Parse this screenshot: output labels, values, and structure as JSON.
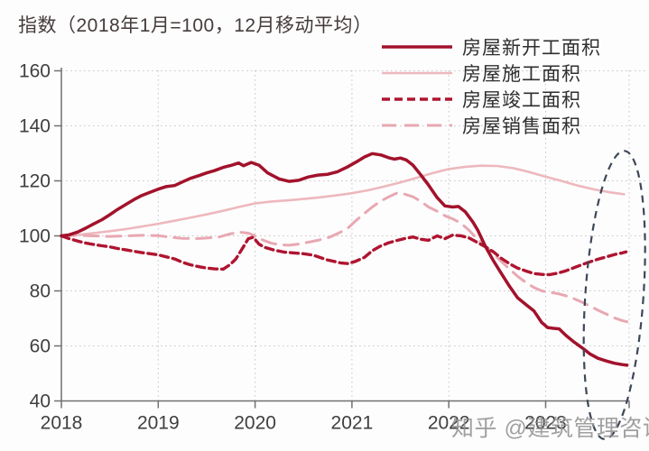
{
  "title": "指数（2018年1月=100，12月移动平均）",
  "watermark": {
    "text": "知乎 @建筑管理咨询"
  },
  "colors": {
    "new_starts": "#A2122B",
    "construction": "#EDB8BD",
    "completed": "#AF1430",
    "sales": "#E8A8B2",
    "axis": "#707070",
    "grid": "#c8c8c8",
    "tick_label": "#3f3f3f",
    "annotation": "#3d4757"
  },
  "chart_data": {
    "type": "line",
    "title": "指数（2018年1月=100，12月移动平均）",
    "xlabel": "",
    "ylabel": "",
    "x_range": [
      2018,
      2023.87
    ],
    "ylim": [
      40,
      160
    ],
    "grid": "dotted",
    "legend_position": "top-right",
    "y_ticks": [
      40,
      60,
      80,
      100,
      120,
      140,
      160
    ],
    "x_ticks": [
      {
        "label": "2018",
        "year": 2018
      },
      {
        "label": "2019",
        "year": 2019
      },
      {
        "label": "2020",
        "year": 2020
      },
      {
        "label": "2021",
        "year": 2021
      },
      {
        "label": "2022",
        "year": 2022
      },
      {
        "label": "2023",
        "year": 2023
      }
    ],
    "annotation": {
      "type": "dashed-ellipse-highlight",
      "center_year": 2023.71,
      "center_value": 78.5,
      "value_top": 131,
      "value_bottom": 26,
      "half_width_years": 0.3
    },
    "series": [
      {
        "id": "construction",
        "name": "房屋施工面积",
        "color": "#EDB8BD",
        "line_style": "solid",
        "width": 2.6,
        "points": [
          [
            2018.0,
            100
          ],
          [
            2018.17,
            100.4
          ],
          [
            2018.33,
            101.0
          ],
          [
            2018.5,
            101.7
          ],
          [
            2018.67,
            102.5
          ],
          [
            2018.83,
            103.4
          ],
          [
            2019.0,
            104.4
          ],
          [
            2019.17,
            105.5
          ],
          [
            2019.33,
            106.6
          ],
          [
            2019.5,
            107.8
          ],
          [
            2019.67,
            109.1
          ],
          [
            2019.83,
            110.5
          ],
          [
            2020.0,
            111.8
          ],
          [
            2020.17,
            112.5
          ],
          [
            2020.33,
            112.9
          ],
          [
            2020.5,
            113.4
          ],
          [
            2020.67,
            114.0
          ],
          [
            2020.83,
            114.7
          ],
          [
            2021.0,
            115.5
          ],
          [
            2021.17,
            116.6
          ],
          [
            2021.33,
            117.9
          ],
          [
            2021.5,
            119.4
          ],
          [
            2021.67,
            121.1
          ],
          [
            2021.83,
            122.8
          ],
          [
            2022.0,
            124.3
          ],
          [
            2022.17,
            125.1
          ],
          [
            2022.33,
            125.5
          ],
          [
            2022.5,
            125.4
          ],
          [
            2022.67,
            124.6
          ],
          [
            2022.83,
            123.2
          ],
          [
            2023.0,
            121.5
          ],
          [
            2023.17,
            119.9
          ],
          [
            2023.33,
            118.3
          ],
          [
            2023.5,
            116.9
          ],
          [
            2023.67,
            115.8
          ],
          [
            2023.81,
            115.1
          ]
        ]
      },
      {
        "id": "sales",
        "name": "房屋销售面积",
        "color": "#E8A8B2",
        "line_style": "long-dash",
        "dash": "16 9",
        "width": 3,
        "points": [
          [
            2018.0,
            100
          ],
          [
            2018.17,
            100.2
          ],
          [
            2018.33,
            100.0
          ],
          [
            2018.5,
            99.8
          ],
          [
            2018.67,
            100.0
          ],
          [
            2018.83,
            100.2
          ],
          [
            2019.0,
            100.1
          ],
          [
            2019.13,
            99.5
          ],
          [
            2019.25,
            99.1
          ],
          [
            2019.38,
            99.0
          ],
          [
            2019.5,
            99.2
          ],
          [
            2019.63,
            99.6
          ],
          [
            2019.75,
            100.8
          ],
          [
            2019.85,
            101.3
          ],
          [
            2019.93,
            101.0
          ],
          [
            2020.0,
            100.0
          ],
          [
            2020.08,
            98.5
          ],
          [
            2020.17,
            97.3
          ],
          [
            2020.25,
            96.8
          ],
          [
            2020.35,
            96.6
          ],
          [
            2020.45,
            97.0
          ],
          [
            2020.55,
            97.7
          ],
          [
            2020.65,
            98.4
          ],
          [
            2020.77,
            99.5
          ],
          [
            2020.88,
            101.3
          ],
          [
            2020.96,
            102.9
          ],
          [
            2021.04,
            105.5
          ],
          [
            2021.13,
            108.2
          ],
          [
            2021.21,
            110.5
          ],
          [
            2021.29,
            112.5
          ],
          [
            2021.38,
            114.2
          ],
          [
            2021.46,
            115.5
          ],
          [
            2021.54,
            115.2
          ],
          [
            2021.63,
            114.2
          ],
          [
            2021.71,
            112.6
          ],
          [
            2021.79,
            110.5
          ],
          [
            2021.88,
            109.0
          ],
          [
            2021.96,
            107.3
          ],
          [
            2022.04,
            106.2
          ],
          [
            2022.13,
            104.5
          ],
          [
            2022.21,
            102.0
          ],
          [
            2022.29,
            99.0
          ],
          [
            2022.38,
            96.2
          ],
          [
            2022.46,
            93.5
          ],
          [
            2022.54,
            90.8
          ],
          [
            2022.63,
            87.8
          ],
          [
            2022.71,
            85.3
          ],
          [
            2022.79,
            83.2
          ],
          [
            2022.88,
            81.2
          ],
          [
            2022.96,
            80.0
          ],
          [
            2023.04,
            79.5
          ],
          [
            2023.13,
            79.0
          ],
          [
            2023.21,
            78.2
          ],
          [
            2023.29,
            77.2
          ],
          [
            2023.38,
            75.8
          ],
          [
            2023.46,
            74.5
          ],
          [
            2023.54,
            73.0
          ],
          [
            2023.63,
            71.5
          ],
          [
            2023.71,
            70.2
          ],
          [
            2023.79,
            69.2
          ],
          [
            2023.84,
            68.8
          ]
        ]
      },
      {
        "id": "completed",
        "name": "房屋竣工面积",
        "color": "#AF1430",
        "line_style": "dash",
        "dash": "9 5",
        "width": 3.4,
        "points": [
          [
            2018.0,
            100
          ],
          [
            2018.08,
            99.0
          ],
          [
            2018.17,
            98.1
          ],
          [
            2018.25,
            97.4
          ],
          [
            2018.33,
            96.9
          ],
          [
            2018.42,
            96.4
          ],
          [
            2018.5,
            96.0
          ],
          [
            2018.58,
            95.4
          ],
          [
            2018.67,
            94.9
          ],
          [
            2018.75,
            94.4
          ],
          [
            2018.83,
            93.9
          ],
          [
            2018.92,
            93.5
          ],
          [
            2019.0,
            93.1
          ],
          [
            2019.08,
            92.4
          ],
          [
            2019.17,
            91.6
          ],
          [
            2019.25,
            90.4
          ],
          [
            2019.33,
            89.5
          ],
          [
            2019.42,
            88.8
          ],
          [
            2019.5,
            88.3
          ],
          [
            2019.58,
            88.0
          ],
          [
            2019.67,
            87.9
          ],
          [
            2019.74,
            89.5
          ],
          [
            2019.8,
            91.5
          ],
          [
            2019.87,
            95.5
          ],
          [
            2019.93,
            99.0
          ],
          [
            2019.98,
            99.5
          ],
          [
            2020.04,
            97.0
          ],
          [
            2020.1,
            95.8
          ],
          [
            2020.2,
            94.8
          ],
          [
            2020.3,
            94.1
          ],
          [
            2020.4,
            93.8
          ],
          [
            2020.5,
            93.5
          ],
          [
            2020.6,
            93.0
          ],
          [
            2020.74,
            91.3
          ],
          [
            2020.88,
            90.2
          ],
          [
            2020.96,
            89.9
          ],
          [
            2021.04,
            90.8
          ],
          [
            2021.13,
            92.2
          ],
          [
            2021.21,
            94.6
          ],
          [
            2021.29,
            96.2
          ],
          [
            2021.38,
            97.5
          ],
          [
            2021.46,
            98.3
          ],
          [
            2021.54,
            99.0
          ],
          [
            2021.63,
            99.6
          ],
          [
            2021.71,
            98.8
          ],
          [
            2021.79,
            98.4
          ],
          [
            2021.88,
            100.0
          ],
          [
            2021.96,
            99.0
          ],
          [
            2022.04,
            100.3
          ],
          [
            2022.13,
            100.0
          ],
          [
            2022.21,
            99.2
          ],
          [
            2022.29,
            97.7
          ],
          [
            2022.38,
            96.0
          ],
          [
            2022.46,
            94.2
          ],
          [
            2022.54,
            91.9
          ],
          [
            2022.63,
            89.8
          ],
          [
            2022.71,
            88.3
          ],
          [
            2022.79,
            87.3
          ],
          [
            2022.88,
            86.3
          ],
          [
            2022.96,
            86.0
          ],
          [
            2023.04,
            85.9
          ],
          [
            2023.13,
            86.5
          ],
          [
            2023.21,
            87.3
          ],
          [
            2023.29,
            88.4
          ],
          [
            2023.38,
            89.6
          ],
          [
            2023.46,
            90.6
          ],
          [
            2023.54,
            91.5
          ],
          [
            2023.63,
            92.4
          ],
          [
            2023.71,
            93.2
          ],
          [
            2023.79,
            93.8
          ],
          [
            2023.83,
            94.2
          ]
        ]
      },
      {
        "id": "new-starts",
        "name": "房屋新开工面积",
        "color": "#A2122B",
        "line_style": "solid",
        "width": 3.5,
        "points": [
          [
            2018.0,
            100
          ],
          [
            2018.08,
            100.4
          ],
          [
            2018.17,
            101.4
          ],
          [
            2018.25,
            102.8
          ],
          [
            2018.33,
            104.3
          ],
          [
            2018.42,
            105.9
          ],
          [
            2018.5,
            107.7
          ],
          [
            2018.58,
            109.6
          ],
          [
            2018.67,
            111.5
          ],
          [
            2018.75,
            113.2
          ],
          [
            2018.83,
            114.7
          ],
          [
            2018.92,
            115.9
          ],
          [
            2019.0,
            117.0
          ],
          [
            2019.08,
            117.9
          ],
          [
            2019.17,
            118.3
          ],
          [
            2019.25,
            119.6
          ],
          [
            2019.33,
            120.9
          ],
          [
            2019.42,
            121.9
          ],
          [
            2019.5,
            122.9
          ],
          [
            2019.58,
            123.7
          ],
          [
            2019.67,
            124.9
          ],
          [
            2019.75,
            125.6
          ],
          [
            2019.83,
            126.5
          ],
          [
            2019.88,
            125.5
          ],
          [
            2019.96,
            126.7
          ],
          [
            2020.04,
            125.7
          ],
          [
            2020.13,
            122.9
          ],
          [
            2020.25,
            120.7
          ],
          [
            2020.35,
            119.8
          ],
          [
            2020.45,
            120.2
          ],
          [
            2020.55,
            121.4
          ],
          [
            2020.65,
            122.1
          ],
          [
            2020.75,
            122.4
          ],
          [
            2020.85,
            123.3
          ],
          [
            2020.95,
            125.0
          ],
          [
            2021.05,
            127.0
          ],
          [
            2021.13,
            128.7
          ],
          [
            2021.21,
            129.9
          ],
          [
            2021.3,
            129.4
          ],
          [
            2021.38,
            128.4
          ],
          [
            2021.44,
            127.9
          ],
          [
            2021.5,
            128.3
          ],
          [
            2021.56,
            127.6
          ],
          [
            2021.63,
            125.7
          ],
          [
            2021.71,
            122.2
          ],
          [
            2021.79,
            118.5
          ],
          [
            2021.88,
            113.9
          ],
          [
            2021.96,
            110.9
          ],
          [
            2022.04,
            110.5
          ],
          [
            2022.1,
            110.7
          ],
          [
            2022.17,
            108.8
          ],
          [
            2022.25,
            105.0
          ],
          [
            2022.3,
            102.0
          ],
          [
            2022.38,
            96.0
          ],
          [
            2022.46,
            91.0
          ],
          [
            2022.54,
            86.5
          ],
          [
            2022.63,
            81.5
          ],
          [
            2022.71,
            77.5
          ],
          [
            2022.79,
            75.2
          ],
          [
            2022.88,
            72.7
          ],
          [
            2022.96,
            68.5
          ],
          [
            2023.02,
            66.7
          ],
          [
            2023.08,
            66.4
          ],
          [
            2023.14,
            66.2
          ],
          [
            2023.21,
            63.8
          ],
          [
            2023.29,
            61.5
          ],
          [
            2023.38,
            59.2
          ],
          [
            2023.46,
            57.0
          ],
          [
            2023.54,
            55.5
          ],
          [
            2023.63,
            54.5
          ],
          [
            2023.71,
            53.7
          ],
          [
            2023.79,
            53.2
          ],
          [
            2023.84,
            53.0
          ]
        ]
      }
    ]
  },
  "legend": {
    "items": [
      {
        "series_index": 3,
        "label": "房屋新开工面积",
        "color": "#A2122B",
        "dash": "",
        "width": 3.5
      },
      {
        "series_index": 0,
        "label": "房屋施工面积",
        "color": "#EDB8BD",
        "dash": "",
        "width": 2.6
      },
      {
        "series_index": 2,
        "label": "房屋竣工面积",
        "color": "#AF1430",
        "dash": "9 5",
        "width": 3.5
      },
      {
        "series_index": 1,
        "label": "房屋销售面积",
        "color": "#E8A8B2",
        "dash": "16 9",
        "width": 3
      }
    ]
  }
}
